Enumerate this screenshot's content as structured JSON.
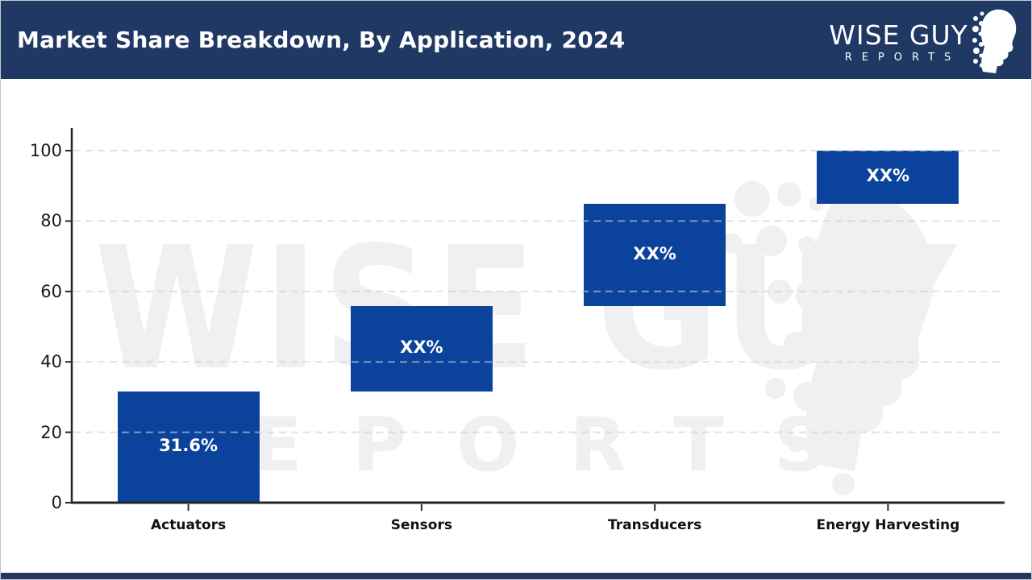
{
  "header": {
    "title": "Market Share Breakdown, By Application, 2024",
    "logo": {
      "line1": "WISE GUY",
      "line2": "REPORTS"
    }
  },
  "watermark": {
    "line1": "WISE GUY",
    "line2": "REPORTS"
  },
  "colors": {
    "navy": "#1f3864",
    "bar_blue": "#0b429c",
    "gridline": "#cfcfcf",
    "axis": "#262626",
    "watermark": "#f0f0f3",
    "bar_label_text": "#ffffff"
  },
  "chart_data": {
    "type": "bar",
    "subtype": "waterfall-stacked-segments",
    "title": "Market Share Breakdown, By Application, 2024",
    "categories": [
      "Actuators",
      "Sensors",
      "Transducers",
      "Energy Harvesting"
    ],
    "series": [
      {
        "name": "Market Share (%)",
        "segments": [
          {
            "category": "Actuators",
            "label": "31.6%",
            "start": 0,
            "end": 31.6
          },
          {
            "category": "Sensors",
            "label": "XX%",
            "start": 31.6,
            "end": 55.8
          },
          {
            "category": "Transducers",
            "label": "XX%",
            "start": 55.8,
            "end": 84.9
          },
          {
            "category": "Energy Harvesting",
            "label": "XX%",
            "start": 84.9,
            "end": 100
          }
        ]
      }
    ],
    "xlabel": "",
    "ylabel": "",
    "ylim": [
      0,
      100
    ],
    "yticks": [
      0,
      20,
      40,
      60,
      80,
      100
    ],
    "grid": "horizontal-dashed",
    "legend": "none",
    "bar_color": "#0b429c"
  }
}
